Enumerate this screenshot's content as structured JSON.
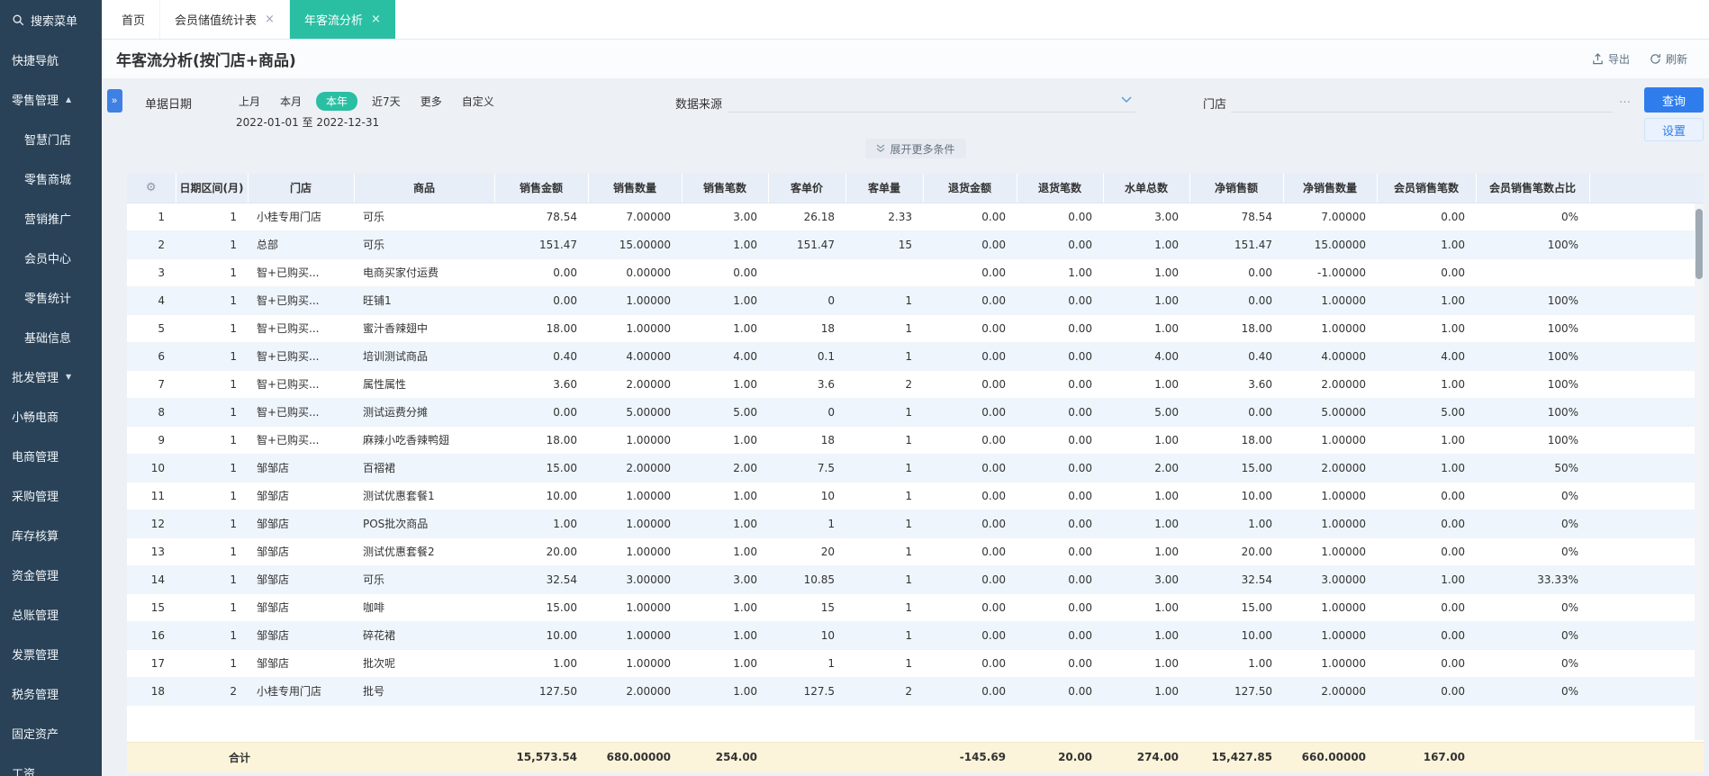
{
  "colors": {
    "accent_green": "#2abfa3",
    "primary_blue": "#2f7ded",
    "negative_red": "#e2372f",
    "sidebar_bg": "#2a4257",
    "total_row_bg": "#fcf4da"
  },
  "sidebar": {
    "items": [
      {
        "label": "搜索菜单",
        "icon": "search"
      },
      {
        "label": "快捷导航"
      },
      {
        "label": "零售管理",
        "arrow": "up"
      },
      {
        "label": "智慧门店",
        "child": true
      },
      {
        "label": "零售商城",
        "child": true
      },
      {
        "label": "营销推广",
        "child": true
      },
      {
        "label": "会员中心",
        "child": true
      },
      {
        "label": "零售统计",
        "child": true
      },
      {
        "label": "基础信息",
        "child": true
      },
      {
        "label": "批发管理",
        "arrow": "down"
      },
      {
        "label": "小畅电商"
      },
      {
        "label": "电商管理"
      },
      {
        "label": "采购管理"
      },
      {
        "label": "库存核算"
      },
      {
        "label": "资金管理"
      },
      {
        "label": "总账管理"
      },
      {
        "label": "发票管理"
      },
      {
        "label": "税务管理"
      },
      {
        "label": "固定资产"
      },
      {
        "label": "工资"
      }
    ]
  },
  "tabs": [
    {
      "label": "首页",
      "closable": false,
      "active": false
    },
    {
      "label": "会员储值统计表",
      "closable": true,
      "active": false
    },
    {
      "label": "年客流分析",
      "closable": true,
      "active": true
    }
  ],
  "page": {
    "title": "年客流分析(按门店+商品)",
    "export_label": "导出",
    "refresh_label": "刷新"
  },
  "filters": {
    "collapse_icon": "»",
    "date_label": "单据日期",
    "date_options": [
      {
        "label": "上月"
      },
      {
        "label": "本月"
      },
      {
        "label": "本年",
        "selected": true
      },
      {
        "label": "近7天"
      },
      {
        "label": "更多"
      },
      {
        "label": "自定义"
      }
    ],
    "date_range": "2022-01-01 至 2022-12-31",
    "source_label": "数据来源",
    "source_value": "",
    "store_label": "门店",
    "store_value": "",
    "store_more": "…",
    "query_label": "查询",
    "settings_label": "设置",
    "expand_label": "展开更多条件"
  },
  "table": {
    "gear_icon": "⚙",
    "headers": [
      "日期区间(月)",
      "门店",
      "商品",
      "销售金额",
      "销售数量",
      "销售笔数",
      "客单价",
      "客单量",
      "退货金额",
      "退货笔数",
      "水单总数",
      "净销售额",
      "净销售数量",
      "会员销售笔数",
      "会员销售笔数占比"
    ],
    "rows": [
      {
        "idx": "1",
        "cells": [
          "1",
          "小桂专用门店",
          "可乐",
          "78.54",
          "7.00000",
          "3.00",
          "26.18",
          "2.33",
          "0.00",
          "0.00",
          "3.00",
          "78.54",
          "7.00000",
          "0.00",
          "0%"
        ]
      },
      {
        "idx": "2",
        "cells": [
          "1",
          "总部",
          "可乐",
          "151.47",
          "15.00000",
          "1.00",
          "151.47",
          "15",
          "0.00",
          "0.00",
          "1.00",
          "151.47",
          "15.00000",
          "1.00",
          "100%"
        ]
      },
      {
        "idx": "3",
        "cells": [
          "1",
          "智+已购买...",
          "电商买家付运费",
          "0.00",
          "0.00000",
          "0.00",
          "",
          "",
          "0.00",
          "1.00",
          "1.00",
          "0.00",
          "-1.00000",
          "0.00",
          ""
        ]
      },
      {
        "idx": "4",
        "cells": [
          "1",
          "智+已购买...",
          "旺铺1",
          "0.00",
          "1.00000",
          "1.00",
          "0",
          "1",
          "0.00",
          "0.00",
          "1.00",
          "0.00",
          "1.00000",
          "1.00",
          "100%"
        ]
      },
      {
        "idx": "5",
        "cells": [
          "1",
          "智+已购买...",
          "蜜汁香辣翅中",
          "18.00",
          "1.00000",
          "1.00",
          "18",
          "1",
          "0.00",
          "0.00",
          "1.00",
          "18.00",
          "1.00000",
          "1.00",
          "100%"
        ]
      },
      {
        "idx": "6",
        "cells": [
          "1",
          "智+已购买...",
          "培训测试商品",
          "0.40",
          "4.00000",
          "4.00",
          "0.1",
          "1",
          "0.00",
          "0.00",
          "4.00",
          "0.40",
          "4.00000",
          "4.00",
          "100%"
        ]
      },
      {
        "idx": "7",
        "cells": [
          "1",
          "智+已购买...",
          "属性属性",
          "3.60",
          "2.00000",
          "1.00",
          "3.6",
          "2",
          "0.00",
          "0.00",
          "1.00",
          "3.60",
          "2.00000",
          "1.00",
          "100%"
        ]
      },
      {
        "idx": "8",
        "cells": [
          "1",
          "智+已购买...",
          "测试运费分摊",
          "0.00",
          "5.00000",
          "5.00",
          "0",
          "1",
          "0.00",
          "0.00",
          "5.00",
          "0.00",
          "5.00000",
          "5.00",
          "100%"
        ]
      },
      {
        "idx": "9",
        "cells": [
          "1",
          "智+已购买...",
          "麻辣小吃香辣鸭翅",
          "18.00",
          "1.00000",
          "1.00",
          "18",
          "1",
          "0.00",
          "0.00",
          "1.00",
          "18.00",
          "1.00000",
          "1.00",
          "100%"
        ]
      },
      {
        "idx": "10",
        "cells": [
          "1",
          "邹邹店",
          "百褶裙",
          "15.00",
          "2.00000",
          "2.00",
          "7.5",
          "1",
          "0.00",
          "0.00",
          "2.00",
          "15.00",
          "2.00000",
          "1.00",
          "50%"
        ]
      },
      {
        "idx": "11",
        "cells": [
          "1",
          "邹邹店",
          "测试优惠套餐1",
          "10.00",
          "1.00000",
          "1.00",
          "10",
          "1",
          "0.00",
          "0.00",
          "1.00",
          "10.00",
          "1.00000",
          "0.00",
          "0%"
        ]
      },
      {
        "idx": "12",
        "cells": [
          "1",
          "邹邹店",
          "POS批次商品",
          "1.00",
          "1.00000",
          "1.00",
          "1",
          "1",
          "0.00",
          "0.00",
          "1.00",
          "1.00",
          "1.00000",
          "0.00",
          "0%"
        ]
      },
      {
        "idx": "13",
        "cells": [
          "1",
          "邹邹店",
          "测试优惠套餐2",
          "20.00",
          "1.00000",
          "1.00",
          "20",
          "1",
          "0.00",
          "0.00",
          "1.00",
          "20.00",
          "1.00000",
          "0.00",
          "0%"
        ]
      },
      {
        "idx": "14",
        "cells": [
          "1",
          "邹邹店",
          "可乐",
          "32.54",
          "3.00000",
          "3.00",
          "10.85",
          "1",
          "0.00",
          "0.00",
          "3.00",
          "32.54",
          "3.00000",
          "1.00",
          "33.33%"
        ]
      },
      {
        "idx": "15",
        "cells": [
          "1",
          "邹邹店",
          "咖啡",
          "15.00",
          "1.00000",
          "1.00",
          "15",
          "1",
          "0.00",
          "0.00",
          "1.00",
          "15.00",
          "1.00000",
          "0.00",
          "0%"
        ]
      },
      {
        "idx": "16",
        "cells": [
          "1",
          "邹邹店",
          "碎花裙",
          "10.00",
          "1.00000",
          "1.00",
          "10",
          "1",
          "0.00",
          "0.00",
          "1.00",
          "10.00",
          "1.00000",
          "0.00",
          "0%"
        ]
      },
      {
        "idx": "17",
        "cells": [
          "1",
          "邹邹店",
          "批次呢",
          "1.00",
          "1.00000",
          "1.00",
          "1",
          "1",
          "0.00",
          "0.00",
          "1.00",
          "1.00",
          "1.00000",
          "0.00",
          "0%"
        ]
      },
      {
        "idx": "18",
        "cells": [
          "2",
          "小桂专用门店",
          "批号",
          "127.50",
          "2.00000",
          "1.00",
          "127.5",
          "2",
          "0.00",
          "0.00",
          "1.00",
          "127.50",
          "2.00000",
          "0.00",
          "0%"
        ]
      }
    ],
    "total": {
      "label": "合计",
      "cells": [
        "",
        "15,573.54",
        "680.00000",
        "254.00",
        "",
        "",
        "-145.69",
        "20.00",
        "274.00",
        "15,427.85",
        "660.00000",
        "167.00",
        ""
      ]
    }
  }
}
